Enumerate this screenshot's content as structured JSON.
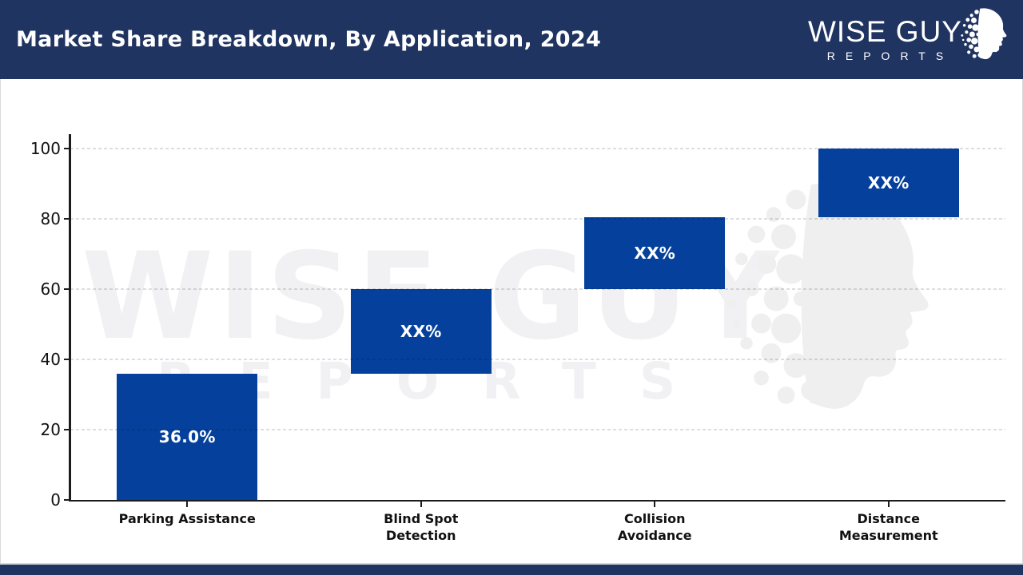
{
  "header": {
    "title": "Market Share Breakdown, By Application, 2024",
    "background_color": "#203461",
    "logo": {
      "wordmark": "WISE GUY",
      "subtext": "REPORTS"
    }
  },
  "watermark": {
    "line1": "WISE GUY",
    "line2": "REPORTS"
  },
  "footer": {
    "background_color": "#203461"
  },
  "chart_data": {
    "type": "bar",
    "subtype": "waterfall",
    "title": "Market Share Breakdown, By Application, 2024",
    "categories": [
      "Parking Assistance",
      "Blind Spot\nDetection",
      "Collision\nAvoidance",
      "Distance\nMeasurement"
    ],
    "bars": [
      {
        "category": "Parking Assistance",
        "label": "36.0%",
        "start": 0,
        "end": 36
      },
      {
        "category": "Blind Spot Detection",
        "label": "XX%",
        "start": 36,
        "end": 60
      },
      {
        "category": "Collision Avoidance",
        "label": "XX%",
        "start": 60,
        "end": 80.5
      },
      {
        "category": "Distance Measurement",
        "label": "XX%",
        "start": 80.5,
        "end": 100
      }
    ],
    "xlabel": "",
    "ylabel": "",
    "yticks": [
      0,
      20,
      40,
      60,
      80,
      100
    ],
    "ylim": [
      0,
      104
    ],
    "grid": "horizontal-dashed",
    "legend": "none",
    "bar_color": "#05419c",
    "bar_label_color": "#ffffff"
  }
}
